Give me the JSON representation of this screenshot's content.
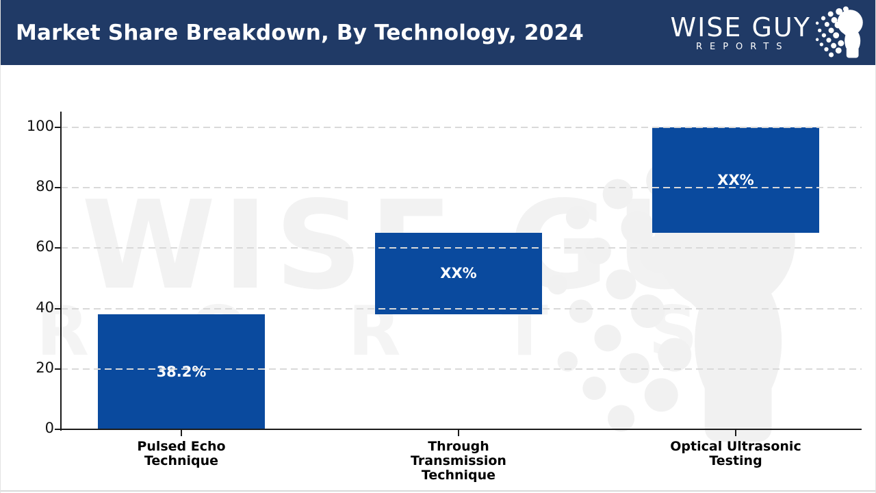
{
  "header": {
    "title": "Market Share Breakdown, By Technology, 2024",
    "bg_color": "#203a66",
    "logo": {
      "wordmark": "WISE GUY",
      "sub": "REPORTS"
    }
  },
  "watermark": {
    "line1": "WISE GUY",
    "line2": "R O R T S"
  },
  "chart_data": {
    "type": "bar",
    "variant": "waterfall",
    "title": "Market Share Breakdown, By Technology, 2024",
    "categories": [
      "Pulsed Echo Technique",
      "Through Transmission Technique",
      "Optical Ultrasonic Testing"
    ],
    "category_label_lines": [
      [
        "Pulsed Echo",
        "Technique"
      ],
      [
        "Through",
        "Transmission",
        "Technique"
      ],
      [
        "Optical Ultrasonic",
        "Testing"
      ]
    ],
    "segments": [
      {
        "category": "Pulsed Echo Technique",
        "start": 0,
        "end": 38.2,
        "value": 38.2,
        "label": "38.2%"
      },
      {
        "category": "Through Transmission Technique",
        "start": 38.2,
        "end": 65,
        "value": 26.8,
        "label": "XX%"
      },
      {
        "category": "Optical Ultrasonic Testing",
        "start": 65,
        "end": 100,
        "value": 35,
        "label": "XX%"
      }
    ],
    "ylim": [
      0,
      100
    ],
    "yticks": [
      0,
      20,
      40,
      60,
      80,
      100
    ],
    "xlabel": "",
    "ylabel": "",
    "bar_color": "#0a4a9e",
    "bar_label_color": "#ffffff",
    "grid": {
      "show": true,
      "style": "dashed",
      "color": "#d9d9d9",
      "orientation": "horizontal"
    },
    "legend": {
      "show": false
    }
  }
}
